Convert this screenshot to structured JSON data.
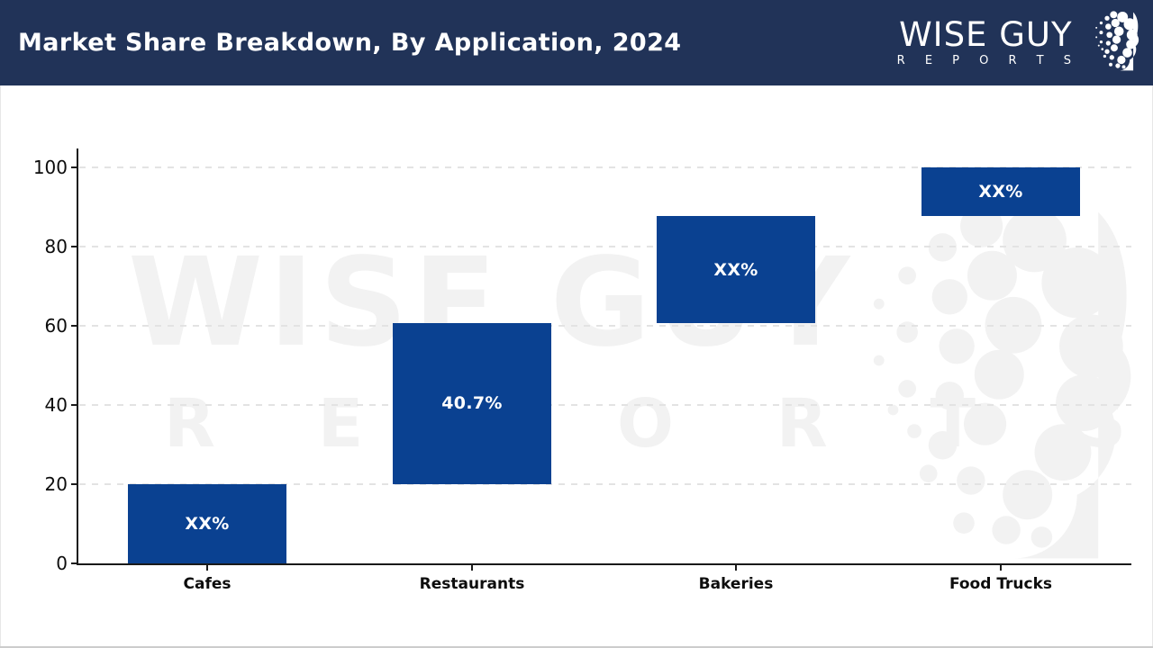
{
  "header": {
    "title": "Market Share Breakdown, By Application, 2024",
    "logo": {
      "line1": "WISE GUY",
      "line2": "R E P O R T S"
    }
  },
  "watermark": {
    "line1": "WISE GUY",
    "line2": "R E P O R T S"
  },
  "chart_data": {
    "type": "bar",
    "subtype": "waterfall",
    "title": "Market Share Breakdown, By Application, 2024",
    "categories": [
      "Cafes",
      "Restaurants",
      "Bakeries",
      "Food Trucks"
    ],
    "segments": [
      {
        "category": "Cafes",
        "start": 0,
        "end": 20,
        "value": 20,
        "label": "XX%"
      },
      {
        "category": "Restaurants",
        "start": 20,
        "end": 60.7,
        "value": 40.7,
        "label": "40.7%"
      },
      {
        "category": "Bakeries",
        "start": 60.7,
        "end": 87.7,
        "value": 27,
        "label": "XX%"
      },
      {
        "category": "Food Trucks",
        "start": 87.7,
        "end": 100,
        "value": 12.3,
        "label": "XX%"
      }
    ],
    "xlabel": "",
    "ylabel": "",
    "ylim": [
      0,
      105
    ],
    "yticks": [
      0,
      20,
      40,
      60,
      80,
      100
    ],
    "grid": "horizontal-dashed",
    "legend": "none",
    "bar_color": "#0a4191",
    "bar_label_color": "#ffffff",
    "header_color": "#213358",
    "watermark_color": "#f2f2f2"
  }
}
